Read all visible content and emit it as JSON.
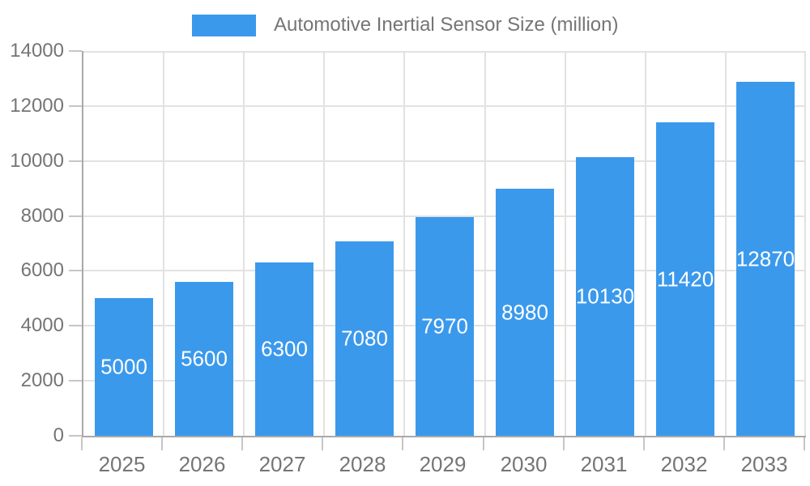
{
  "legend": {
    "label": "Automotive Inertial Sensor Size (million)"
  },
  "colors": {
    "bar": "#3B99EC",
    "axis_line": "#A9A9A9",
    "gridline": "#E2E2E2",
    "tick_mark": "#C6C6C6",
    "axis_text": "#757575",
    "value_text": "#FFFFFF",
    "background": "#FFFFFF"
  },
  "chart_data": {
    "type": "bar",
    "title": "Automotive Inertial Sensor Size (million)",
    "categories": [
      "2025",
      "2026",
      "2027",
      "2028",
      "2029",
      "2030",
      "2031",
      "2032",
      "2033"
    ],
    "values": [
      5000,
      5600,
      6300,
      7080,
      7970,
      8980,
      10130,
      11420,
      12870
    ],
    "xlabel": "",
    "ylabel": "",
    "ylim": [
      0,
      14000
    ],
    "yticks": [
      0,
      2000,
      4000,
      6000,
      8000,
      10000,
      12000,
      14000
    ],
    "grid": true,
    "grid_vertical": true,
    "legend_position": "top-center",
    "value_label_position": "inside-center"
  }
}
